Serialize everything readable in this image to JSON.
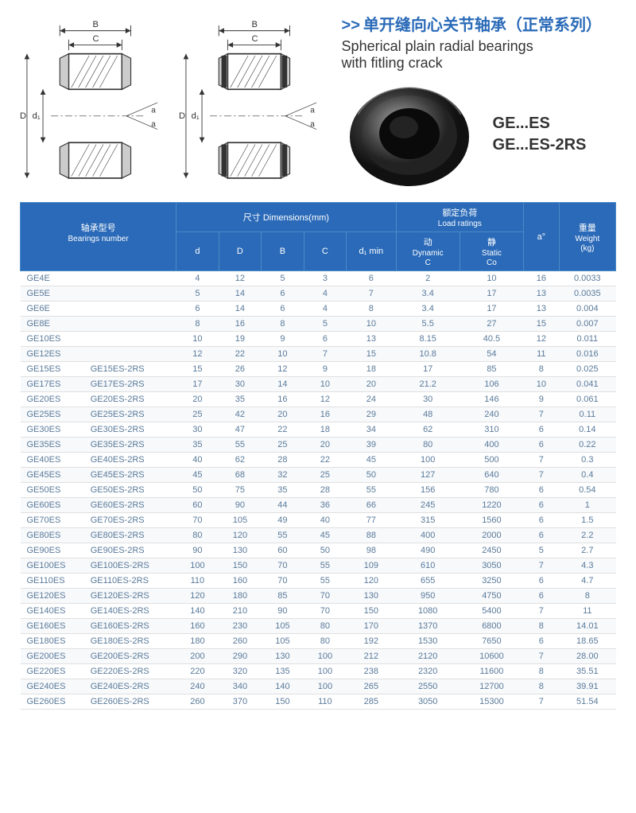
{
  "title": {
    "arrows": ">>",
    "cn": "单开缝向心关节轴承（正常系列）",
    "en_line1": "Spherical plain radial bearings",
    "en_line2": "with fitling crack",
    "model1": "GE...ES",
    "model2": "GE...ES-2RS"
  },
  "diagram_labels": {
    "B": "B",
    "C": "C",
    "D": "D",
    "d1": "d₁",
    "a": "a"
  },
  "table": {
    "header": {
      "bearings_number_cn": "轴承型号",
      "bearings_number_en": "Bearings number",
      "dimensions_cn": "尺寸",
      "dimensions_en": "Dimensions(mm)",
      "d": "d",
      "D": "D",
      "B": "B",
      "C": "C",
      "d1min": "d₁ min",
      "load_cn": "额定负荷",
      "load_en": "Load ratings",
      "dynamic_cn": "动",
      "dynamic_en": "Dynamic",
      "dynamic_sym": "C",
      "static_cn": "静",
      "static_en": "Static",
      "static_sym": "Co",
      "angle": "a°",
      "weight_cn": "重量",
      "weight_en": "Weight",
      "weight_unit": "(kg)"
    },
    "col_widths": [
      "9%",
      "13%",
      "6%",
      "6%",
      "6%",
      "6%",
      "7%",
      "9%",
      "9%",
      "5%",
      "8%"
    ],
    "rows": [
      [
        "GE4E",
        "",
        "4",
        "12",
        "5",
        "3",
        "6",
        "2",
        "10",
        "16",
        "0.0033"
      ],
      [
        "GE5E",
        "",
        "5",
        "14",
        "6",
        "4",
        "7",
        "3.4",
        "17",
        "13",
        "0.0035"
      ],
      [
        "GE6E",
        "",
        "6",
        "14",
        "6",
        "4",
        "8",
        "3.4",
        "17",
        "13",
        "0.004"
      ],
      [
        "GE8E",
        "",
        "8",
        "16",
        "8",
        "5",
        "10",
        "5.5",
        "27",
        "15",
        "0.007"
      ],
      [
        "GE10ES",
        "",
        "10",
        "19",
        "9",
        "6",
        "13",
        "8.15",
        "40.5",
        "12",
        "0.011"
      ],
      [
        "GE12ES",
        "",
        "12",
        "22",
        "10",
        "7",
        "15",
        "10.8",
        "54",
        "11",
        "0.016"
      ],
      [
        "GE15ES",
        "GE15ES-2RS",
        "15",
        "26",
        "12",
        "9",
        "18",
        "17",
        "85",
        "8",
        "0.025"
      ],
      [
        "GE17ES",
        "GE17ES-2RS",
        "17",
        "30",
        "14",
        "10",
        "20",
        "21.2",
        "106",
        "10",
        "0.041"
      ],
      [
        "GE20ES",
        "GE20ES-2RS",
        "20",
        "35",
        "16",
        "12",
        "24",
        "30",
        "146",
        "9",
        "0.061"
      ],
      [
        "GE25ES",
        "GE25ES-2RS",
        "25",
        "42",
        "20",
        "16",
        "29",
        "48",
        "240",
        "7",
        "0.11"
      ],
      [
        "GE30ES",
        "GE30ES-2RS",
        "30",
        "47",
        "22",
        "18",
        "34",
        "62",
        "310",
        "6",
        "0.14"
      ],
      [
        "GE35ES",
        "GE35ES-2RS",
        "35",
        "55",
        "25",
        "20",
        "39",
        "80",
        "400",
        "6",
        "0.22"
      ],
      [
        "GE40ES",
        "GE40ES-2RS",
        "40",
        "62",
        "28",
        "22",
        "45",
        "100",
        "500",
        "7",
        "0.3"
      ],
      [
        "GE45ES",
        "GE45ES-2RS",
        "45",
        "68",
        "32",
        "25",
        "50",
        "127",
        "640",
        "7",
        "0.4"
      ],
      [
        "GE50ES",
        "GE50ES-2RS",
        "50",
        "75",
        "35",
        "28",
        "55",
        "156",
        "780",
        "6",
        "0.54"
      ],
      [
        "GE60ES",
        "GE60ES-2RS",
        "60",
        "90",
        "44",
        "36",
        "66",
        "245",
        "1220",
        "6",
        "1"
      ],
      [
        "GE70ES",
        "GE70ES-2RS",
        "70",
        "105",
        "49",
        "40",
        "77",
        "315",
        "1560",
        "6",
        "1.5"
      ],
      [
        "GE80ES",
        "GE80ES-2RS",
        "80",
        "120",
        "55",
        "45",
        "88",
        "400",
        "2000",
        "6",
        "2.2"
      ],
      [
        "GE90ES",
        "GE90ES-2RS",
        "90",
        "130",
        "60",
        "50",
        "98",
        "490",
        "2450",
        "5",
        "2.7"
      ],
      [
        "GE100ES",
        "GE100ES-2RS",
        "100",
        "150",
        "70",
        "55",
        "109",
        "610",
        "3050",
        "7",
        "4.3"
      ],
      [
        "GE110ES",
        "GE110ES-2RS",
        "110",
        "160",
        "70",
        "55",
        "120",
        "655",
        "3250",
        "6",
        "4.7"
      ],
      [
        "GE120ES",
        "GE120ES-2RS",
        "120",
        "180",
        "85",
        "70",
        "130",
        "950",
        "4750",
        "6",
        "8"
      ],
      [
        "GE140ES",
        "GE140ES-2RS",
        "140",
        "210",
        "90",
        "70",
        "150",
        "1080",
        "5400",
        "7",
        "11"
      ],
      [
        "GE160ES",
        "GE160ES-2RS",
        "160",
        "230",
        "105",
        "80",
        "170",
        "1370",
        "6800",
        "8",
        "14.01"
      ],
      [
        "GE180ES",
        "GE180ES-2RS",
        "180",
        "260",
        "105",
        "80",
        "192",
        "1530",
        "7650",
        "6",
        "18.65"
      ],
      [
        "GE200ES",
        "GE200ES-2RS",
        "200",
        "290",
        "130",
        "100",
        "212",
        "2120",
        "10600",
        "7",
        "28.00"
      ],
      [
        "GE220ES",
        "GE220ES-2RS",
        "220",
        "320",
        "135",
        "100",
        "238",
        "2320",
        "11600",
        "8",
        "35.51"
      ],
      [
        "GE240ES",
        "GE240ES-2RS",
        "240",
        "340",
        "140",
        "100",
        "265",
        "2550",
        "12700",
        "8",
        "39.91"
      ],
      [
        "GE260ES",
        "GE260ES-2RS",
        "260",
        "370",
        "150",
        "110",
        "285",
        "3050",
        "15300",
        "7",
        "51.54"
      ]
    ]
  },
  "colors": {
    "header_bg": "#2a6ab8",
    "header_border": "#4a8ac8",
    "row_alt": "#f7f9fb",
    "title_blue": "#2a6ab8",
    "cell_text": "#5a7a9a"
  }
}
